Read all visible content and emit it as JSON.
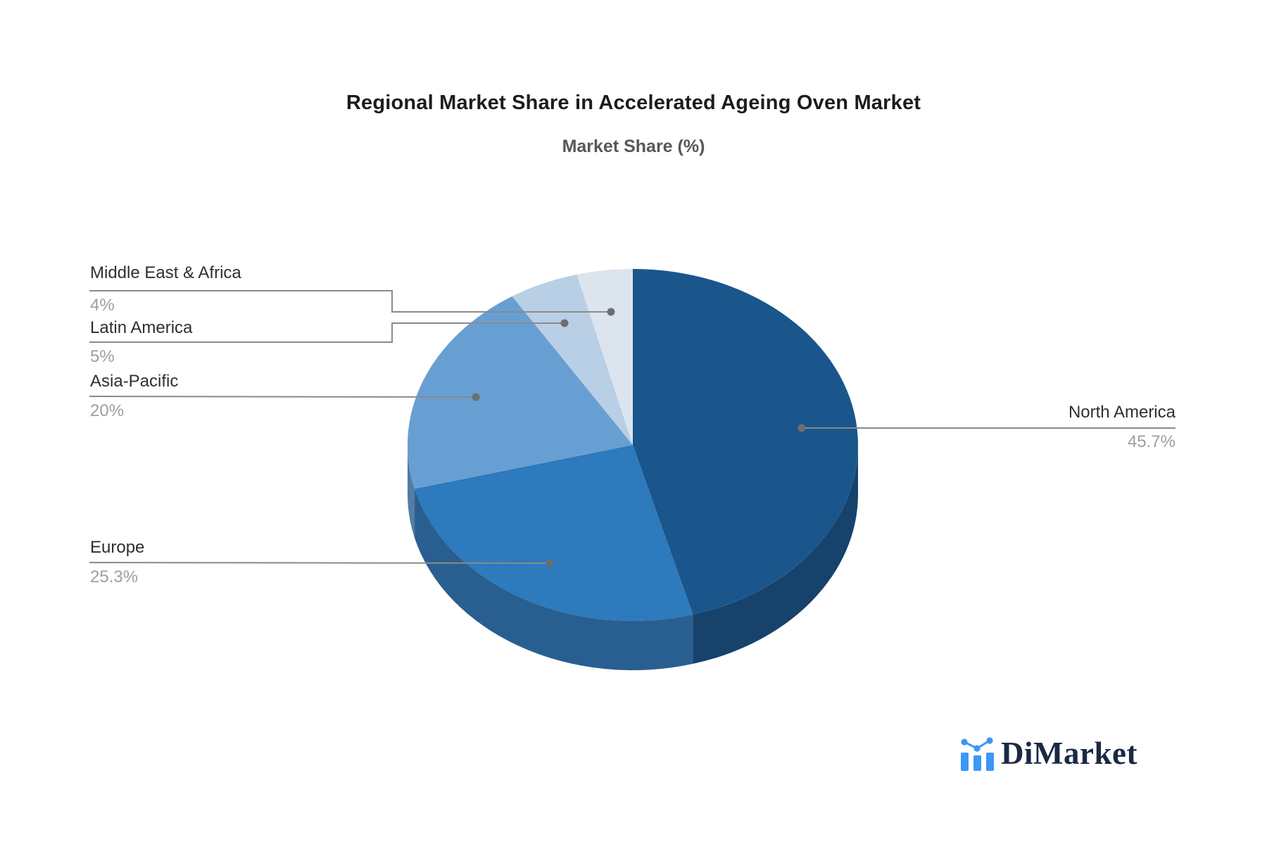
{
  "title": "Regional Market Share in Accelerated Ageing Oven Market",
  "subtitle": "Market Share (%)",
  "chart_data": {
    "type": "pie",
    "style": "3d",
    "unit": "%",
    "start_angle_deg": 0,
    "direction": "clockwise",
    "legend_position": "connector-labels",
    "series": [
      {
        "name": "North America",
        "value": 45.7,
        "value_label": "45.7%",
        "color": "#1a568c",
        "side_color": "#16426b"
      },
      {
        "name": "Europe",
        "value": 25.3,
        "value_label": "25.3%",
        "color": "#2d7abc",
        "side_color": "#295f90"
      },
      {
        "name": "Asia-Pacific",
        "value": 20,
        "value_label": "20%",
        "color": "#689fd3",
        "side_color": "#527ca3"
      },
      {
        "name": "Latin America",
        "value": 5,
        "value_label": "5%",
        "color": "#b9cfe5",
        "side_color": "#93a4b6"
      },
      {
        "name": "Middle East & Africa",
        "value": 4,
        "value_label": "4%",
        "color": "#dce4ee",
        "side_color": "#aeb4bd"
      }
    ]
  },
  "connector_style": {
    "line_color": "#8a8a8a",
    "dot_color": "#6b6e70"
  },
  "logo": {
    "text": "DiMarket",
    "icon": "bar-chart-trend-icon",
    "icon_color": "#3e96f5",
    "text_color": "#1a2944"
  }
}
